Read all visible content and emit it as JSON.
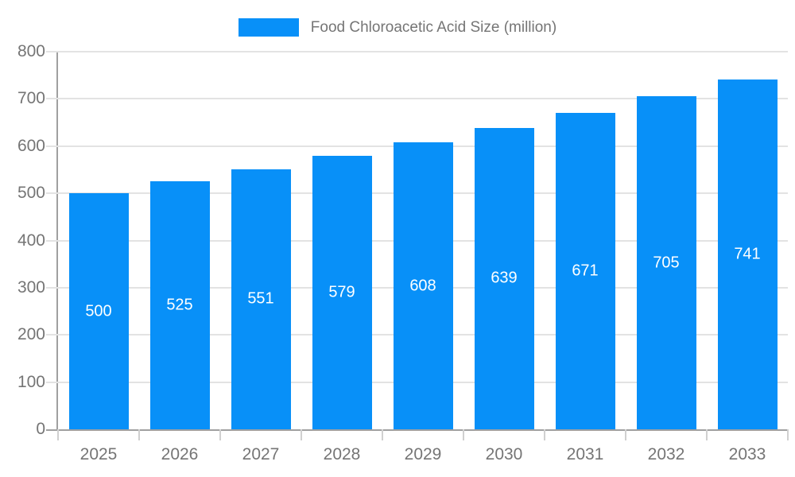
{
  "chart_data": {
    "type": "bar",
    "title": "Food Chloroacetic Acid Size (million)",
    "categories": [
      "2025",
      "2026",
      "2027",
      "2028",
      "2029",
      "2030",
      "2031",
      "2032",
      "2033"
    ],
    "values": [
      500,
      525,
      551,
      579,
      608,
      639,
      671,
      705,
      741
    ],
    "xlabel": "",
    "ylabel": "",
    "ylim": [
      0,
      800
    ],
    "yticks": [
      0,
      100,
      200,
      300,
      400,
      500,
      600,
      700,
      800
    ],
    "grid": true,
    "legend_position": "top-center",
    "bar_labels_inside": true,
    "colors": {
      "bar": "#0890f8",
      "bar_label_text": "#ffffff",
      "axis_line": "#a0a0a0",
      "gridline": "#e3e3e3",
      "x_tick": "#d0d0d0",
      "tick_text": "#757575",
      "legend_text": "#757575",
      "background": "#ffffff"
    }
  }
}
